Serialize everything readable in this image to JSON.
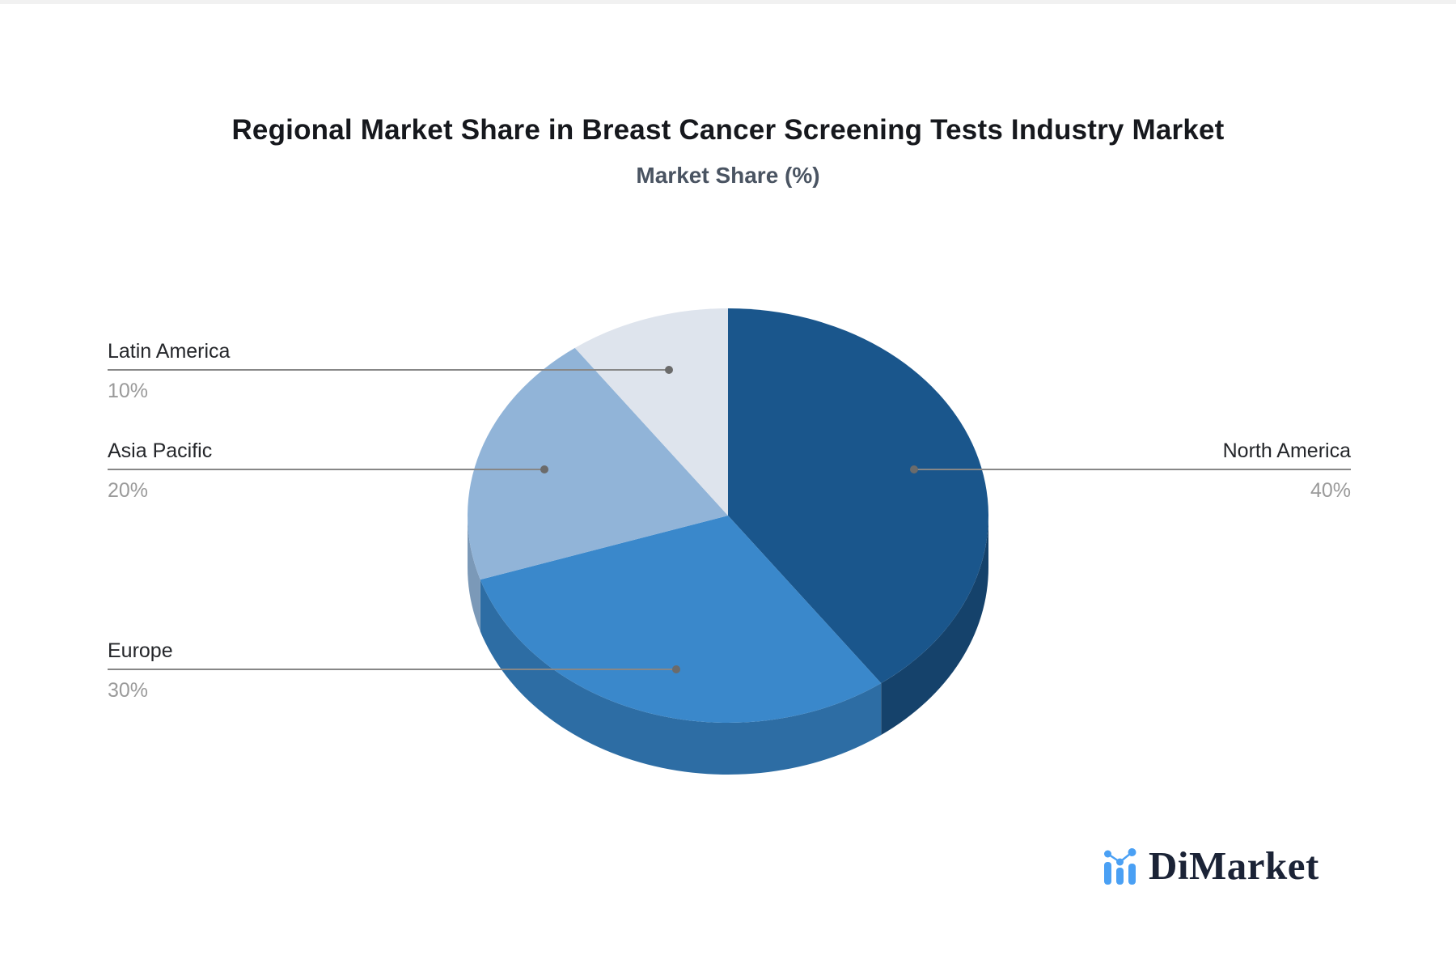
{
  "chart_data": {
    "type": "pie",
    "title": "Regional Market Share in Breast Cancer Screening Tests Industry Market",
    "subtitle": "Market Share (%)",
    "effect": "3d",
    "start_angle": "12-oclock",
    "direction": "clockwise",
    "legend_position": "callout-labels",
    "unit": "%",
    "slices": [
      {
        "label": "North America",
        "value": 40,
        "value_label": "40%",
        "color": "#1a568c",
        "side_color": "#15426b"
      },
      {
        "label": "Europe",
        "value": 30,
        "value_label": "30%",
        "color": "#3a88cb",
        "side_color": "#2d6da4"
      },
      {
        "label": "Asia Pacific",
        "value": 20,
        "value_label": "20%",
        "color": "#91b4d8",
        "side_color": "#7b99b8"
      },
      {
        "label": "Latin America",
        "value": 10,
        "value_label": "10%",
        "color": "#dee4ed",
        "side_color": "#c2ccd9"
      }
    ],
    "callout_line_color": "#878787",
    "callout_dot_color": "#6b6b6b",
    "title_color": "#16181d",
    "subtitle_color": "#4a5462",
    "label_color": "#24262a",
    "value_color": "#9a9a9a"
  },
  "logo": {
    "text": "DiMarket",
    "icon": "bar-chart-logo-icon",
    "icon_color": "#4aa0f4",
    "text_color": "#1b2336"
  }
}
